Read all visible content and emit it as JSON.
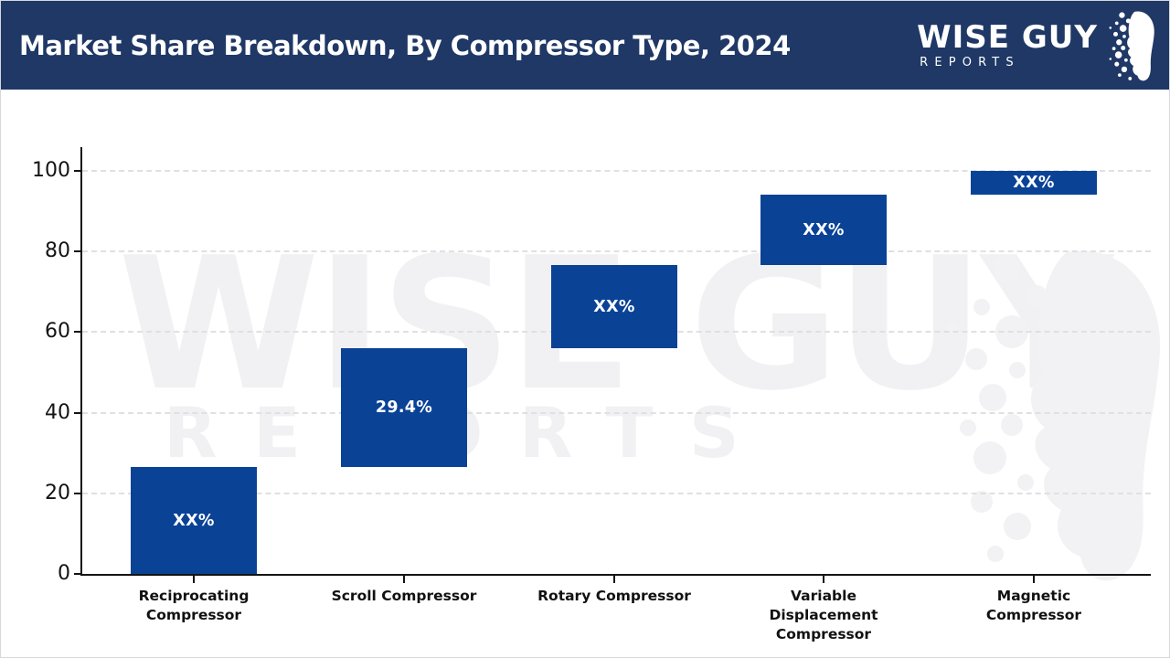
{
  "header": {
    "title": "Market Share Breakdown, By Compressor Type, 2024",
    "logo": {
      "name_top": "WISE GUY",
      "name_bottom": "REPORTS"
    }
  },
  "watermark": {
    "text_top": "WISE GUY",
    "text_bottom": "REPORTS"
  },
  "colors": {
    "header_bg": "#1f3866",
    "bar": "#0a4296",
    "bar_label": "#ffffff",
    "gridline": "#e0e0e0",
    "axis": "#141414",
    "watermark": "#f1f1f3"
  },
  "chart_data": {
    "type": "bar",
    "subtype": "floating-segment-waterfall",
    "title": "Market Share Breakdown, By Compressor Type, 2024",
    "categories": [
      "Reciprocating Compressor",
      "Scroll Compressor",
      "Rotary Compressor",
      "Variable Displacement Compressor",
      "Magnetic Compressor"
    ],
    "category_lines": [
      [
        "Reciprocating",
        "Compressor"
      ],
      [
        "Scroll Compressor"
      ],
      [
        "Rotary Compressor"
      ],
      [
        "Variable",
        "Displacement",
        "Compressor"
      ],
      [
        "Magnetic",
        "Compressor"
      ]
    ],
    "segments": [
      {
        "category": "Reciprocating Compressor",
        "start": 0,
        "end": 26.5,
        "label": "XX%"
      },
      {
        "category": "Scroll Compressor",
        "start": 26.5,
        "end": 55.9,
        "label": "29.4%"
      },
      {
        "category": "Rotary Compressor",
        "start": 55.9,
        "end": 76.6,
        "label": "XX%"
      },
      {
        "category": "Variable Displacement Compressor",
        "start": 76.6,
        "end": 94.1,
        "label": "XX%"
      },
      {
        "category": "Magnetic Compressor",
        "start": 94.1,
        "end": 100,
        "label": "XX%"
      }
    ],
    "xlabel": "",
    "ylabel": "",
    "yticks": [
      0,
      20,
      40,
      60,
      80,
      100
    ],
    "ylim": [
      0,
      105
    ],
    "grid": "horizontal-dashed",
    "legend": "none",
    "bar_color": "#0a4296"
  }
}
